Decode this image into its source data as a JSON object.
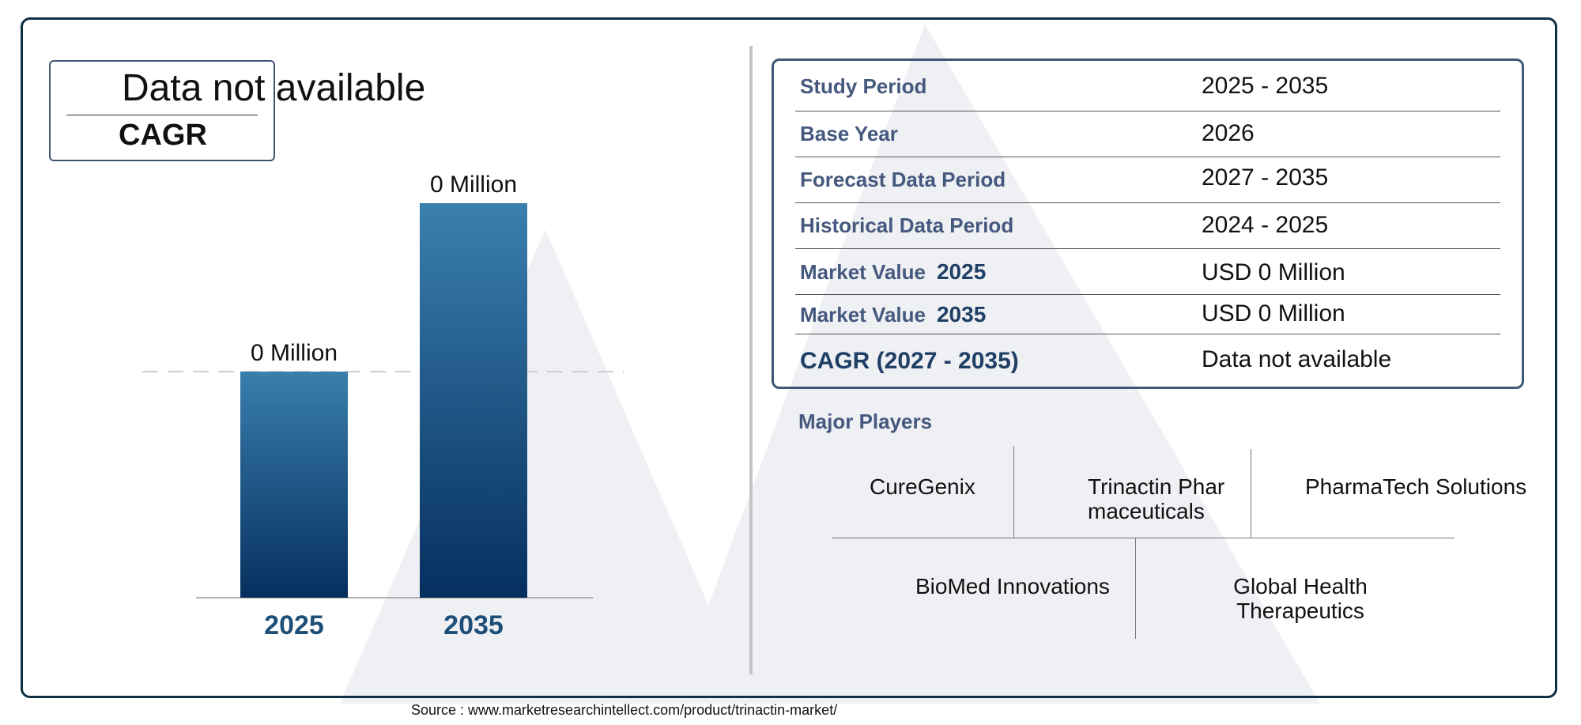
{
  "cagr": {
    "value": "Data not available",
    "label": "CAGR"
  },
  "chart_data": {
    "type": "bar",
    "categories": [
      "2025",
      "2035"
    ],
    "values": [
      0,
      0
    ],
    "data_labels": [
      "0 Million",
      "0 Million"
    ],
    "title": "",
    "xlabel": "",
    "ylabel": "",
    "colors": [
      "#3a7fae",
      "#062f5e"
    ],
    "grid": false,
    "legend": "none"
  },
  "info_table": [
    {
      "label": "Study Period",
      "value": "2025 - 2035"
    },
    {
      "label": "Base Year",
      "value": "2026"
    },
    {
      "label": "Forecast Data Period",
      "value": "2027 - 2035"
    },
    {
      "label": "Historical Data Period",
      "value": "2024 - 2025"
    },
    {
      "label": "Market Value",
      "year": "2025",
      "value": "USD 0 Million"
    },
    {
      "label": "Market Value",
      "year": "2035",
      "value": "USD 0 Million"
    },
    {
      "label": "CAGR (2027 - 2035)",
      "value": "Data not available"
    }
  ],
  "players": {
    "title": "Major Players",
    "items": [
      "CureGenix",
      "Trinactin Pharmaceuticals",
      "PharmaTech Solutions",
      "BioMed Innovations",
      "Global Health Therapeutics"
    ]
  },
  "source": "Source : www.marketresearchintellect.com/product/trinactin-market/"
}
